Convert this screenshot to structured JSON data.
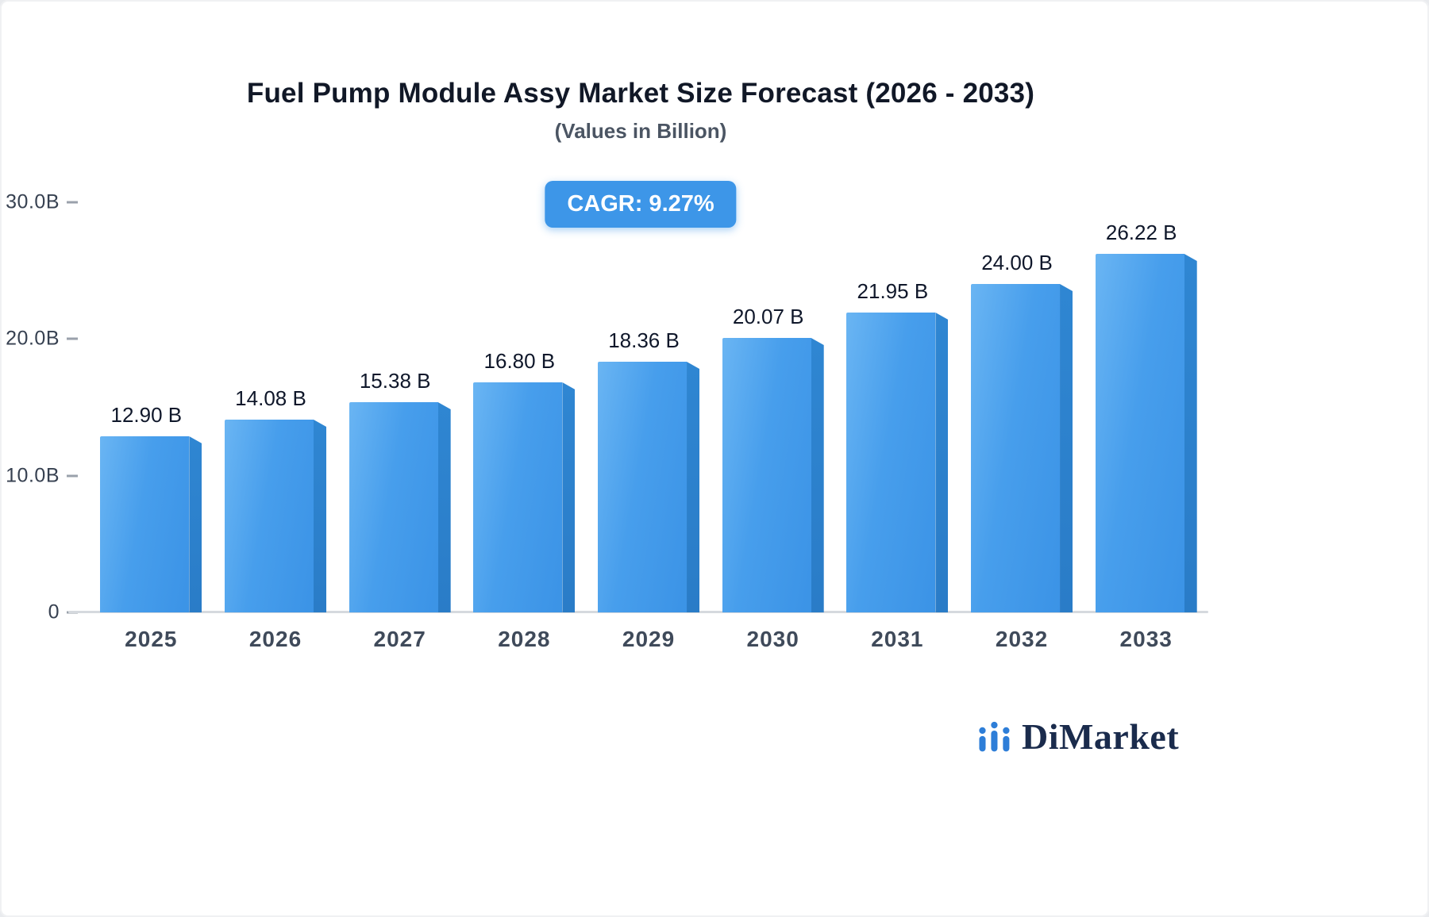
{
  "header": {
    "title": "Fuel Pump Module Assy Market Size Forecast (2026 - 2033)",
    "subtitle": "(Values in Billion)"
  },
  "badge": {
    "label": "CAGR: 9.27%"
  },
  "chart_data": {
    "type": "bar",
    "title": "Fuel Pump Module Assy Market Size Forecast (2026 - 2033)",
    "subtitle": "(Values in Billion)",
    "categories": [
      "2025",
      "2026",
      "2027",
      "2028",
      "2029",
      "2030",
      "2031",
      "2032",
      "2033"
    ],
    "values": [
      12.9,
      14.08,
      15.38,
      16.8,
      18.36,
      20.07,
      21.95,
      24.0,
      26.22
    ],
    "value_labels": [
      "12.90 B",
      "14.08 B",
      "15.38 B",
      "16.80 B",
      "18.36 B",
      "20.07 B",
      "21.95 B",
      "24.00 B",
      "26.22 B"
    ],
    "ylim": [
      0,
      30
    ],
    "yticks": [
      {
        "value": 0,
        "label": "0"
      },
      {
        "value": 10,
        "label": "10.0B"
      },
      {
        "value": 20,
        "label": "20.0B"
      },
      {
        "value": 30,
        "label": "30.0B"
      }
    ],
    "grid": false,
    "legend": false,
    "bar_color": "#3d96e8",
    "bar_color_light": "#6ab5f3",
    "bar_side_color": "#2a7cc7"
  },
  "logo": {
    "brand": "DiMarket",
    "icon": "bar-chart-icon",
    "color": "#2e7ed8",
    "text_color": "#1a2b4c"
  },
  "colors": {
    "accent": "#3d96e8",
    "badge_bg": "#3d96e8",
    "title": "#111827",
    "subtitle": "#4b5563",
    "axis_text": "#374151",
    "axis_line": "#d5d9de"
  }
}
